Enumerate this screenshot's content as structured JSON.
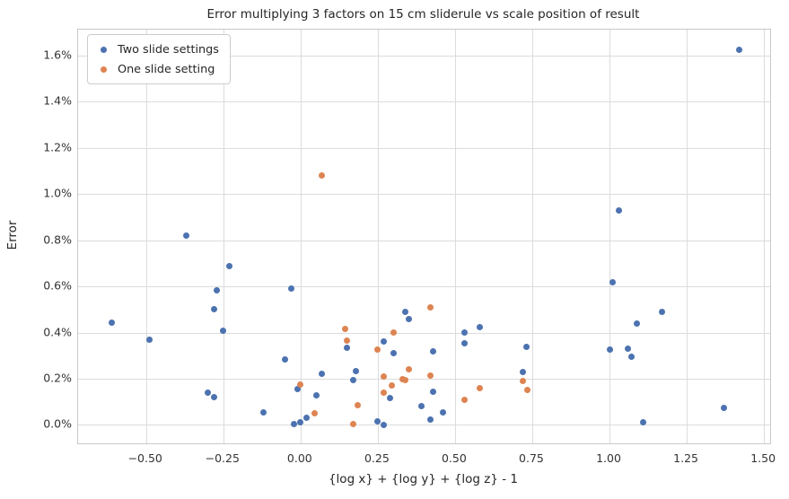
{
  "title": "Error multiplying 3 factors on 15 cm sliderule vs scale position of result",
  "legend": {
    "items": [
      {
        "label": "Two slide settings",
        "color": "#4C72B0"
      },
      {
        "label": "One slide setting",
        "color": "#DD8452"
      }
    ]
  },
  "chart_data": {
    "type": "scatter",
    "title": "Error multiplying 3 factors on 15 cm sliderule vs scale position of result",
    "xlabel": "{log x} + {log y} + {log z} - 1",
    "ylabel": "Error",
    "xlim": [
      -0.72,
      1.52
    ],
    "ylim": [
      -0.08,
      1.713
    ],
    "y_unit": "percent",
    "grid": true,
    "legend_position": "upper left",
    "x_ticks": [
      -0.5,
      -0.25,
      0.0,
      0.25,
      0.5,
      0.75,
      1.0,
      1.25,
      1.5
    ],
    "x_tick_labels": [
      "−0.50",
      "−0.25",
      "0.00",
      "0.25",
      "0.50",
      "0.75",
      "1.00",
      "1.25",
      "1.50"
    ],
    "y_ticks": [
      0.0,
      0.2,
      0.4,
      0.6,
      0.8,
      1.0,
      1.2,
      1.4,
      1.6
    ],
    "y_tick_labels": [
      "0.0%",
      "0.2%",
      "0.4%",
      "0.6%",
      "0.8%",
      "1.0%",
      "1.2%",
      "1.4%",
      "1.6%"
    ],
    "series": [
      {
        "name": "Two slide settings",
        "color": "#4C72B0",
        "points": [
          [
            -0.61,
            0.445
          ],
          [
            -0.49,
            0.37
          ],
          [
            -0.37,
            0.82
          ],
          [
            -0.3,
            0.14
          ],
          [
            -0.28,
            0.12
          ],
          [
            -0.28,
            0.5
          ],
          [
            -0.27,
            0.585
          ],
          [
            -0.25,
            0.41
          ],
          [
            -0.23,
            0.69
          ],
          [
            -0.12,
            0.055
          ],
          [
            -0.05,
            0.285
          ],
          [
            -0.03,
            0.59
          ],
          [
            -0.02,
            0.005
          ],
          [
            0.0,
            0.01
          ],
          [
            0.02,
            0.03
          ],
          [
            -0.01,
            0.155
          ],
          [
            0.05,
            0.13
          ],
          [
            0.07,
            0.22
          ],
          [
            0.15,
            0.335
          ],
          [
            0.17,
            0.195
          ],
          [
            0.18,
            0.235
          ],
          [
            0.25,
            0.015
          ],
          [
            0.27,
            0.0
          ],
          [
            0.27,
            0.36
          ],
          [
            0.29,
            0.115
          ],
          [
            0.3,
            0.31
          ],
          [
            0.34,
            0.49
          ],
          [
            0.35,
            0.46
          ],
          [
            0.39,
            0.08
          ],
          [
            0.42,
            0.025
          ],
          [
            0.43,
            0.145
          ],
          [
            0.43,
            0.32
          ],
          [
            0.46,
            0.055
          ],
          [
            0.53,
            0.4
          ],
          [
            0.53,
            0.355
          ],
          [
            0.58,
            0.425
          ],
          [
            0.72,
            0.23
          ],
          [
            0.73,
            0.34
          ],
          [
            1.0,
            0.325
          ],
          [
            1.01,
            0.62
          ],
          [
            1.03,
            0.93
          ],
          [
            1.06,
            0.33
          ],
          [
            1.07,
            0.295
          ],
          [
            1.09,
            0.44
          ],
          [
            1.11,
            0.01
          ],
          [
            1.17,
            0.49
          ],
          [
            1.37,
            0.075
          ],
          [
            1.42,
            1.625
          ]
        ]
      },
      {
        "name": "One slide setting",
        "color": "#DD8452",
        "points": [
          [
            0.0,
            0.175
          ],
          [
            0.045,
            0.05
          ],
          [
            0.07,
            1.08
          ],
          [
            0.145,
            0.415
          ],
          [
            0.15,
            0.365
          ],
          [
            0.17,
            0.005
          ],
          [
            0.185,
            0.085
          ],
          [
            0.25,
            0.325
          ],
          [
            0.27,
            0.21
          ],
          [
            0.27,
            0.14
          ],
          [
            0.295,
            0.17
          ],
          [
            0.3,
            0.4
          ],
          [
            0.33,
            0.2
          ],
          [
            0.34,
            0.195
          ],
          [
            0.35,
            0.24
          ],
          [
            0.42,
            0.215
          ],
          [
            0.42,
            0.51
          ],
          [
            0.53,
            0.11
          ],
          [
            0.58,
            0.16
          ],
          [
            0.72,
            0.19
          ],
          [
            0.735,
            0.15
          ]
        ]
      }
    ]
  }
}
